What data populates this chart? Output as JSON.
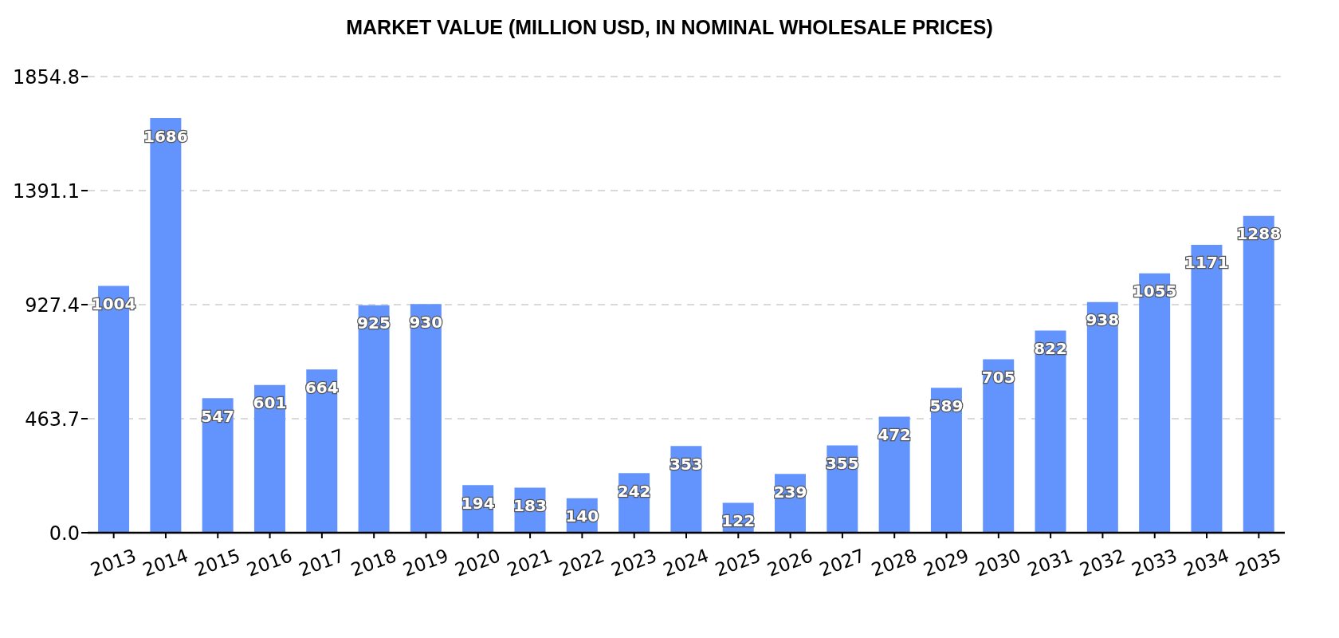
{
  "chart_data": {
    "type": "bar",
    "title": "MARKET VALUE (MILLION USD, IN NOMINAL WHOLESALE PRICES)",
    "categories": [
      "2013",
      "2014",
      "2015",
      "2016",
      "2017",
      "2018",
      "2019",
      "2020",
      "2021",
      "2022",
      "2023",
      "2024",
      "2025",
      "2026",
      "2027",
      "2028",
      "2029",
      "2030",
      "2031",
      "2032",
      "2033",
      "2034",
      "2035"
    ],
    "values": [
      1004,
      1686,
      547,
      601,
      664,
      925,
      930,
      194,
      183,
      140,
      242,
      353,
      122,
      239,
      355,
      472,
      589,
      705,
      822,
      938,
      1055,
      1171,
      1288
    ],
    "color": "#6394fd",
    "ylim": [
      0,
      1854.8
    ],
    "yticks": [
      {
        "value": 0,
        "label": "0.0"
      },
      463.7,
      927.4,
      1391.1,
      1854.8
    ],
    "grid": "y",
    "data_labels": true
  }
}
